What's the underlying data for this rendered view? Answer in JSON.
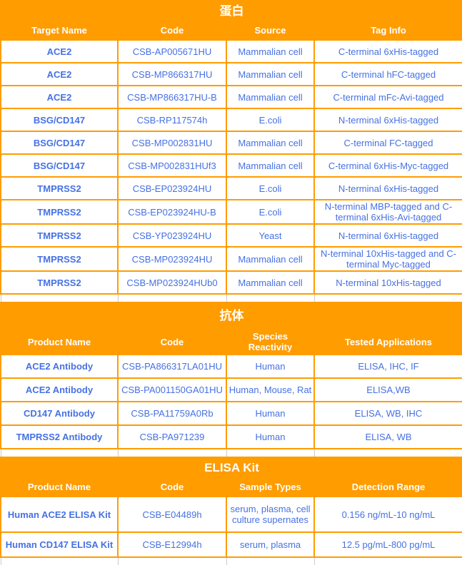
{
  "colors": {
    "accent_orange": "#FF9C00",
    "cell_text_blue": "#4671E4",
    "header_text_white": "#FFFFFF",
    "spacer_border_gray": "#CCCCCC",
    "cell_background": "#FFFFFF"
  },
  "tables": [
    {
      "title": "蛋白",
      "headers": [
        "Target Name",
        "Code",
        "Source",
        "Tag Info"
      ],
      "rows": [
        [
          "ACE2",
          "CSB-AP005671HU",
          "Mammalian cell",
          "C-terminal 6xHis-tagged"
        ],
        [
          "ACE2",
          "CSB-MP866317HU",
          "Mammalian cell",
          "C-terminal hFC-tagged"
        ],
        [
          "ACE2",
          "CSB-MP866317HU-B",
          "Mammalian cell",
          "C-terminal mFc-Avi-tagged"
        ],
        [
          "BSG/CD147",
          "CSB-RP117574h",
          "E.coli",
          "N-terminal 6xHis-tagged"
        ],
        [
          "BSG/CD147",
          "CSB-MP002831HU",
          "Mammalian cell",
          "C-terminal FC-tagged"
        ],
        [
          "BSG/CD147",
          "CSB-MP002831HUf3",
          "Mammalian cell",
          "C-terminal 6xHis-Myc-tagged"
        ],
        [
          "TMPRSS2",
          "CSB-EP023924HU",
          "E.coli",
          "N-terminal 6xHis-tagged"
        ],
        [
          "TMPRSS2",
          "CSB-EP023924HU-B",
          "E.coli",
          "N-terminal MBP-tagged and C-terminal 6xHis-Avi-tagged"
        ],
        [
          "TMPRSS2",
          "CSB-YP023924HU",
          "Yeast",
          "N-terminal 6xHis-tagged"
        ],
        [
          "TMPRSS2",
          "CSB-MP023924HU",
          "Mammalian cell",
          "N-terminal 10xHis-tagged and C-terminal Myc-tagged"
        ],
        [
          "TMPRSS2",
          "CSB-MP023924HUb0",
          "Mammalian cell",
          "N-terminal 10xHis-tagged"
        ]
      ]
    },
    {
      "title": "抗体",
      "headers": [
        "Product Name",
        "Code",
        "Species Reactivity",
        "Tested Applications"
      ],
      "rows": [
        [
          "ACE2 Antibody",
          "CSB-PA866317LA01HU",
          "Human",
          "ELISA, IHC, IF"
        ],
        [
          "ACE2 Antibody",
          "CSB-PA001150GA01HU",
          "Human, Mouse, Rat",
          "ELISA,WB"
        ],
        [
          "CD147 Antibody",
          "CSB-PA11759A0Rb",
          "Human",
          "ELISA, WB, IHC"
        ],
        [
          "TMPRSS2 Antibody",
          "CSB-PA971239",
          "Human",
          "ELISA, WB"
        ]
      ]
    },
    {
      "title": "ELISA Kit",
      "headers": [
        "Product Name",
        "Code",
        "Sample Types",
        "Detection Range"
      ],
      "rows": [
        [
          "Human ACE2 ELISA Kit",
          "CSB-E04489h",
          "serum, plasma, cell culture supernates",
          "0.156 ng/mL-10 ng/mL"
        ],
        [
          "Human CD147 ELISA Kit",
          "CSB-E12994h",
          "serum, plasma",
          "12.5 pg/mL-800 pg/mL"
        ]
      ]
    }
  ]
}
